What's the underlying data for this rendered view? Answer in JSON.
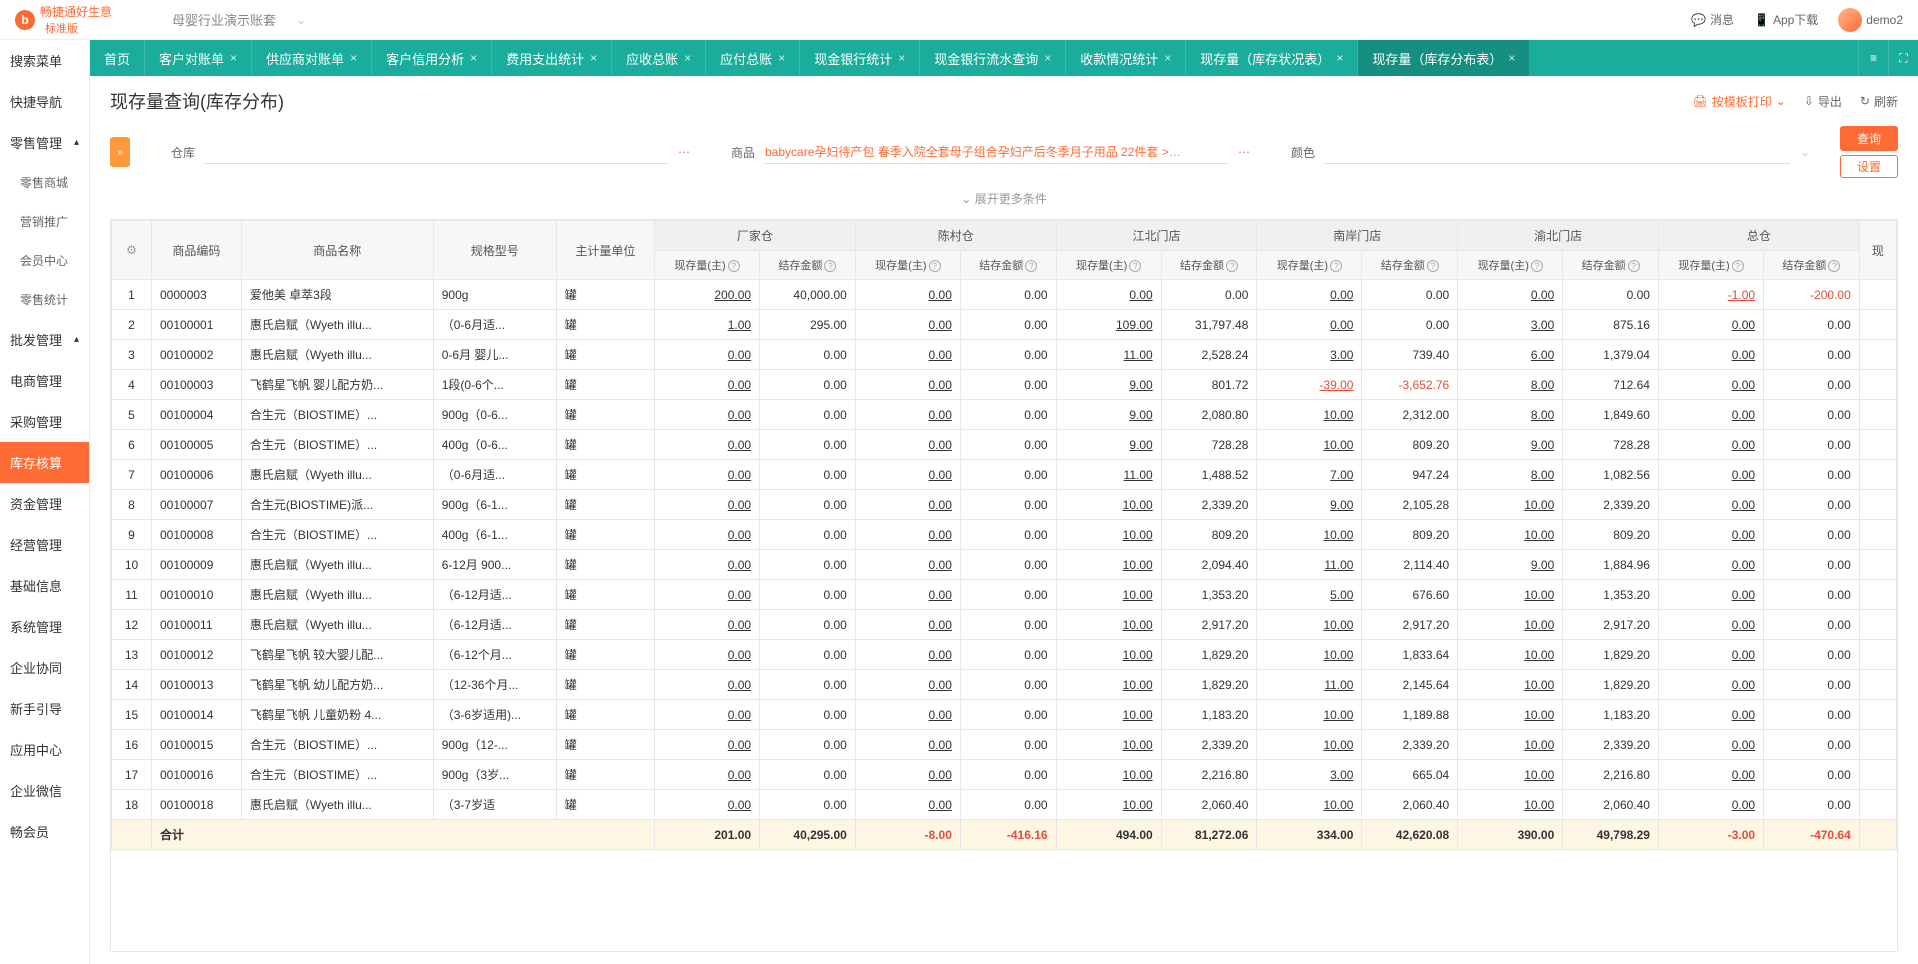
{
  "topbar": {
    "brand": "畅捷通好生意",
    "edition": "标准版",
    "title": "母婴行业演示账套",
    "msg": "消息",
    "download": "App下载",
    "user": "demo2"
  },
  "sidebar": {
    "items": [
      {
        "label": "搜索菜单",
        "type": "plain"
      },
      {
        "label": "快捷导航",
        "type": "plain"
      },
      {
        "label": "零售管理",
        "type": "group",
        "expanded": true
      },
      {
        "label": "零售商城",
        "type": "sub"
      },
      {
        "label": "营销推广",
        "type": "sub"
      },
      {
        "label": "会员中心",
        "type": "sub"
      },
      {
        "label": "零售统计",
        "type": "sub"
      },
      {
        "label": "批发管理",
        "type": "group",
        "expanded": true
      },
      {
        "label": "电商管理",
        "type": "plain"
      },
      {
        "label": "采购管理",
        "type": "plain"
      },
      {
        "label": "库存核算",
        "type": "plain",
        "active": true
      },
      {
        "label": "资金管理",
        "type": "plain"
      },
      {
        "label": "经营管理",
        "type": "plain"
      },
      {
        "label": "基础信息",
        "type": "plain"
      },
      {
        "label": "系统管理",
        "type": "plain"
      },
      {
        "label": "企业协同",
        "type": "plain"
      },
      {
        "label": "新手引导",
        "type": "plain"
      },
      {
        "label": "应用中心",
        "type": "plain"
      },
      {
        "label": "企业微信",
        "type": "plain"
      },
      {
        "label": "畅会员",
        "type": "plain"
      }
    ]
  },
  "tabs": {
    "items": [
      {
        "label": "首页",
        "closable": false
      },
      {
        "label": "客户对账单",
        "closable": true
      },
      {
        "label": "供应商对账单",
        "closable": true
      },
      {
        "label": "客户信用分析",
        "closable": true
      },
      {
        "label": "费用支出统计",
        "closable": true
      },
      {
        "label": "应收总账",
        "closable": true
      },
      {
        "label": "应付总账",
        "closable": true
      },
      {
        "label": "现金银行统计",
        "closable": true
      },
      {
        "label": "现金银行流水查询",
        "closable": true
      },
      {
        "label": "收款情况统计",
        "closable": true
      },
      {
        "label": "现存量（库存状况表）",
        "closable": true
      },
      {
        "label": "现存量（库存分布表）",
        "closable": true,
        "active": true
      }
    ]
  },
  "page": {
    "title": "现存量查询(库存分布)",
    "print": "按模板打印",
    "export": "导出",
    "refresh": "刷新"
  },
  "filters": {
    "warehouse_label": "仓库",
    "product_label": "商品",
    "product_value": "babycare孕妇待产包 春季入院全套母子组合孕妇产后冬季月子用品 22件套 >…",
    "color_label": "颜色",
    "query": "查询",
    "setting": "设置",
    "expand": "展开更多条件"
  },
  "table": {
    "fixed_headers": [
      "",
      "商品编码",
      "商品名称",
      "规格型号",
      "主计量单位"
    ],
    "groups": [
      "厂家仓",
      "陈村仓",
      "江北门店",
      "南岸门店",
      "渝北门店",
      "总仓"
    ],
    "sub_headers": [
      "现存量(主)",
      "结存金额"
    ],
    "extra_col": "现",
    "rows": [
      {
        "idx": 1,
        "code": "0000003",
        "name": "爱他美 卓萃3段",
        "spec": "900g",
        "unit": "罐",
        "vals": [
          [
            "200.00",
            "40,000.00"
          ],
          [
            "0.00",
            "0.00"
          ],
          [
            "0.00",
            "0.00"
          ],
          [
            "0.00",
            "0.00"
          ],
          [
            "0.00",
            "0.00"
          ],
          [
            "-1.00",
            "-200.00"
          ]
        ]
      },
      {
        "idx": 2,
        "code": "00100001",
        "name": "惠氏启赋（Wyeth illu...",
        "spec": "（0-6月适...",
        "unit": "罐",
        "vals": [
          [
            "1.00",
            "295.00"
          ],
          [
            "0.00",
            "0.00"
          ],
          [
            "109.00",
            "31,797.48"
          ],
          [
            "0.00",
            "0.00"
          ],
          [
            "3.00",
            "875.16"
          ],
          [
            "0.00",
            "0.00"
          ]
        ]
      },
      {
        "idx": 3,
        "code": "00100002",
        "name": "惠氏启赋（Wyeth illu...",
        "spec": "0-6月 婴儿...",
        "unit": "罐",
        "vals": [
          [
            "0.00",
            "0.00"
          ],
          [
            "0.00",
            "0.00"
          ],
          [
            "11.00",
            "2,528.24"
          ],
          [
            "3.00",
            "739.40"
          ],
          [
            "6.00",
            "1,379.04"
          ],
          [
            "0.00",
            "0.00"
          ]
        ]
      },
      {
        "idx": 4,
        "code": "00100003",
        "name": "飞鹤星飞帆 婴儿配方奶...",
        "spec": "1段(0-6个...",
        "unit": "罐",
        "vals": [
          [
            "0.00",
            "0.00"
          ],
          [
            "0.00",
            "0.00"
          ],
          [
            "9.00",
            "801.72"
          ],
          [
            "-39.00",
            "-3,652.76"
          ],
          [
            "8.00",
            "712.64"
          ],
          [
            "0.00",
            "0.00"
          ]
        ]
      },
      {
        "idx": 5,
        "code": "00100004",
        "name": "合生元（BIOSTIME）...",
        "spec": "900g（0-6...",
        "unit": "罐",
        "vals": [
          [
            "0.00",
            "0.00"
          ],
          [
            "0.00",
            "0.00"
          ],
          [
            "9.00",
            "2,080.80"
          ],
          [
            "10.00",
            "2,312.00"
          ],
          [
            "8.00",
            "1,849.60"
          ],
          [
            "0.00",
            "0.00"
          ]
        ]
      },
      {
        "idx": 6,
        "code": "00100005",
        "name": "合生元（BIOSTIME）...",
        "spec": "400g（0-6...",
        "unit": "罐",
        "vals": [
          [
            "0.00",
            "0.00"
          ],
          [
            "0.00",
            "0.00"
          ],
          [
            "9.00",
            "728.28"
          ],
          [
            "10.00",
            "809.20"
          ],
          [
            "9.00",
            "728.28"
          ],
          [
            "0.00",
            "0.00"
          ]
        ]
      },
      {
        "idx": 7,
        "code": "00100006",
        "name": "惠氏启赋（Wyeth illu...",
        "spec": "（0-6月适...",
        "unit": "罐",
        "vals": [
          [
            "0.00",
            "0.00"
          ],
          [
            "0.00",
            "0.00"
          ],
          [
            "11.00",
            "1,488.52"
          ],
          [
            "7.00",
            "947.24"
          ],
          [
            "8.00",
            "1,082.56"
          ],
          [
            "0.00",
            "0.00"
          ]
        ]
      },
      {
        "idx": 8,
        "code": "00100007",
        "name": "合生元(BIOSTIME)派...",
        "spec": "900g（6-1...",
        "unit": "罐",
        "vals": [
          [
            "0.00",
            "0.00"
          ],
          [
            "0.00",
            "0.00"
          ],
          [
            "10.00",
            "2,339.20"
          ],
          [
            "9.00",
            "2,105.28"
          ],
          [
            "10.00",
            "2,339.20"
          ],
          [
            "0.00",
            "0.00"
          ]
        ]
      },
      {
        "idx": 9,
        "code": "00100008",
        "name": "合生元（BIOSTIME）...",
        "spec": "400g（6-1...",
        "unit": "罐",
        "vals": [
          [
            "0.00",
            "0.00"
          ],
          [
            "0.00",
            "0.00"
          ],
          [
            "10.00",
            "809.20"
          ],
          [
            "10.00",
            "809.20"
          ],
          [
            "10.00",
            "809.20"
          ],
          [
            "0.00",
            "0.00"
          ]
        ]
      },
      {
        "idx": 10,
        "code": "00100009",
        "name": "惠氏启赋（Wyeth illu...",
        "spec": "6-12月 900...",
        "unit": "罐",
        "vals": [
          [
            "0.00",
            "0.00"
          ],
          [
            "0.00",
            "0.00"
          ],
          [
            "10.00",
            "2,094.40"
          ],
          [
            "11.00",
            "2,114.40"
          ],
          [
            "9.00",
            "1,884.96"
          ],
          [
            "0.00",
            "0.00"
          ]
        ]
      },
      {
        "idx": 11,
        "code": "00100010",
        "name": "惠氏启赋（Wyeth illu...",
        "spec": "（6-12月适...",
        "unit": "罐",
        "vals": [
          [
            "0.00",
            "0.00"
          ],
          [
            "0.00",
            "0.00"
          ],
          [
            "10.00",
            "1,353.20"
          ],
          [
            "5.00",
            "676.60"
          ],
          [
            "10.00",
            "1,353.20"
          ],
          [
            "0.00",
            "0.00"
          ]
        ]
      },
      {
        "idx": 12,
        "code": "00100011",
        "name": "惠氏启赋（Wyeth illu...",
        "spec": "（6-12月适...",
        "unit": "罐",
        "vals": [
          [
            "0.00",
            "0.00"
          ],
          [
            "0.00",
            "0.00"
          ],
          [
            "10.00",
            "2,917.20"
          ],
          [
            "10.00",
            "2,917.20"
          ],
          [
            "10.00",
            "2,917.20"
          ],
          [
            "0.00",
            "0.00"
          ]
        ]
      },
      {
        "idx": 13,
        "code": "00100012",
        "name": "飞鹤星飞帆 较大婴儿配...",
        "spec": "（6-12个月...",
        "unit": "罐",
        "vals": [
          [
            "0.00",
            "0.00"
          ],
          [
            "0.00",
            "0.00"
          ],
          [
            "10.00",
            "1,829.20"
          ],
          [
            "10.00",
            "1,833.64"
          ],
          [
            "10.00",
            "1,829.20"
          ],
          [
            "0.00",
            "0.00"
          ]
        ]
      },
      {
        "idx": 14,
        "code": "00100013",
        "name": "飞鹤星飞帆 幼儿配方奶...",
        "spec": "（12-36个月...",
        "unit": "罐",
        "vals": [
          [
            "0.00",
            "0.00"
          ],
          [
            "0.00",
            "0.00"
          ],
          [
            "10.00",
            "1,829.20"
          ],
          [
            "11.00",
            "2,145.64"
          ],
          [
            "10.00",
            "1,829.20"
          ],
          [
            "0.00",
            "0.00"
          ]
        ]
      },
      {
        "idx": 15,
        "code": "00100014",
        "name": "飞鹤星飞帆 儿童奶粉 4...",
        "spec": "（3-6岁适用)...",
        "unit": "罐",
        "vals": [
          [
            "0.00",
            "0.00"
          ],
          [
            "0.00",
            "0.00"
          ],
          [
            "10.00",
            "1,183.20"
          ],
          [
            "10.00",
            "1,189.88"
          ],
          [
            "10.00",
            "1,183.20"
          ],
          [
            "0.00",
            "0.00"
          ]
        ]
      },
      {
        "idx": 16,
        "code": "00100015",
        "name": "合生元（BIOSTIME）...",
        "spec": "900g（12-...",
        "unit": "罐",
        "vals": [
          [
            "0.00",
            "0.00"
          ],
          [
            "0.00",
            "0.00"
          ],
          [
            "10.00",
            "2,339.20"
          ],
          [
            "10.00",
            "2,339.20"
          ],
          [
            "10.00",
            "2,339.20"
          ],
          [
            "0.00",
            "0.00"
          ]
        ]
      },
      {
        "idx": 17,
        "code": "00100016",
        "name": "合生元（BIOSTIME）...",
        "spec": "900g（3岁...",
        "unit": "罐",
        "vals": [
          [
            "0.00",
            "0.00"
          ],
          [
            "0.00",
            "0.00"
          ],
          [
            "10.00",
            "2,216.80"
          ],
          [
            "3.00",
            "665.04"
          ],
          [
            "10.00",
            "2,216.80"
          ],
          [
            "0.00",
            "0.00"
          ]
        ]
      },
      {
        "idx": 18,
        "code": "00100018",
        "name": "惠氏启赋（Wyeth illu...",
        "spec": "（3-7岁适",
        "unit": "罐",
        "vals": [
          [
            "0.00",
            "0.00"
          ],
          [
            "0.00",
            "0.00"
          ],
          [
            "10.00",
            "2,060.40"
          ],
          [
            "10.00",
            "2,060.40"
          ],
          [
            "10.00",
            "2,060.40"
          ],
          [
            "0.00",
            "0.00"
          ]
        ]
      }
    ],
    "total_label": "合计",
    "totals": [
      [
        "201.00",
        "40,295.00"
      ],
      [
        "-8.00",
        "-416.16"
      ],
      [
        "494.00",
        "81,272.06"
      ],
      [
        "334.00",
        "42,620.08"
      ],
      [
        "390.00",
        "49,798.29"
      ],
      [
        "-3.00",
        "-470.64"
      ]
    ]
  }
}
